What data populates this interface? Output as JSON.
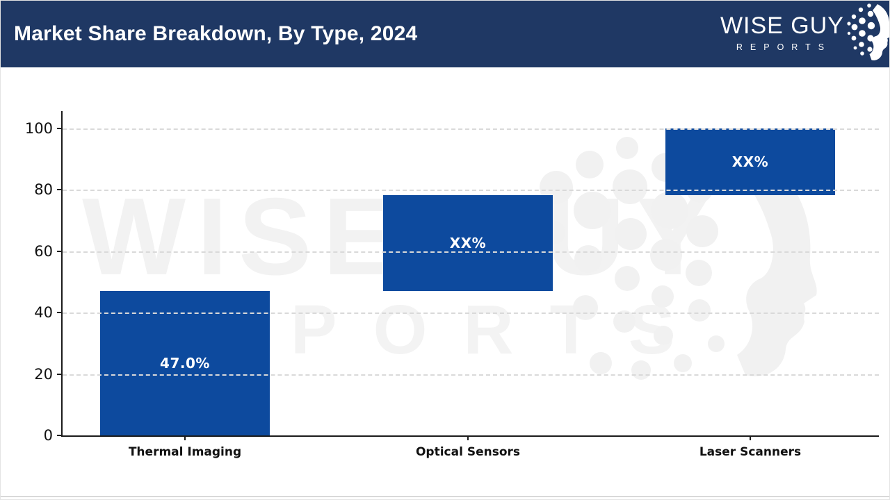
{
  "header": {
    "title": "Market Share Breakdown, By Type, 2024",
    "logo": {
      "name": "WISE GUY",
      "sub": "REPORTS"
    }
  },
  "watermark": {
    "line1": "WISE GUY",
    "line2": "REPORTS"
  },
  "chart_data": {
    "type": "bar",
    "subtype": "waterfall",
    "title": "Market Share Breakdown, By Type, 2024",
    "categories": [
      "Thermal Imaging",
      "Optical Sensors",
      "Laser Scanners"
    ],
    "segments": [
      {
        "category": "Thermal Imaging",
        "start": 0,
        "end": 47.0,
        "label": "47.0%"
      },
      {
        "category": "Optical Sensors",
        "start": 47.0,
        "end": 78.2,
        "label": "XX%"
      },
      {
        "category": "Laser Scanners",
        "start": 78.2,
        "end": 100.0,
        "label": "XX%"
      }
    ],
    "ylim": [
      0,
      100
    ],
    "yticks": [
      0,
      20,
      40,
      60,
      80,
      100
    ],
    "grid": "horizontal-dashed",
    "legend": "none",
    "bar_color": "#0d4a9e",
    "bar_label_color": "#ffffff",
    "axis_color": "#1a1a1a",
    "grid_color": "#d9d9d9",
    "header_bg_color": "#1f3864"
  }
}
